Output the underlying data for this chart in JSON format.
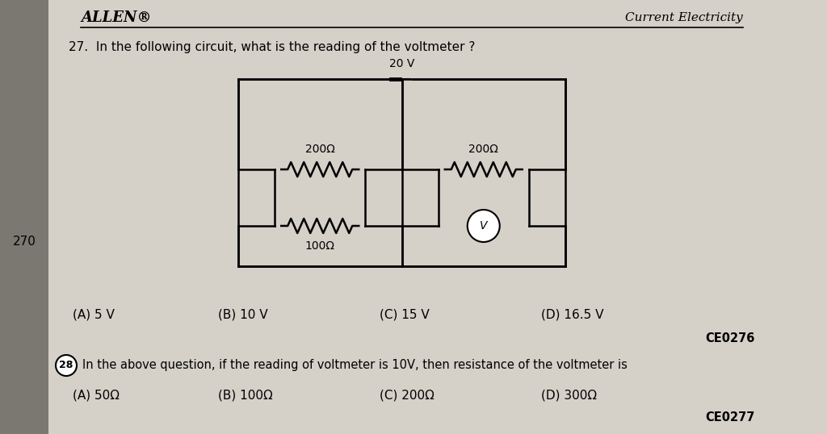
{
  "bg_color": "#b8b4ac",
  "page_bg": "#d8d4cc",
  "left_strip_color": "#8a8680",
  "title_text": "Current Electricity",
  "allen_text": "ALLEN",
  "q27_text": "27.  In the following circuit, what is the reading of the voltmeter ?",
  "q28_text": "In the above question, if the reading of voltmeter is 10V, then resistance of the voltmeter is",
  "options_q27": [
    "(A) 5 V",
    "(B) 10 V",
    "(C) 15 V",
    "(D) 16.5 V"
  ],
  "options_q28": [
    "(A) 50Ω",
    "(B) 100Ω",
    "(C) 200Ω",
    "(D) 300Ω"
  ],
  "code27": "CE0276",
  "code28": "CE0277",
  "left_side_text": "270",
  "battery_label": "20 V",
  "res_left_upper": "200Ω",
  "res_right_upper": "200Ω",
  "res_left_lower": "100Ω",
  "voltmeter_label": "V"
}
